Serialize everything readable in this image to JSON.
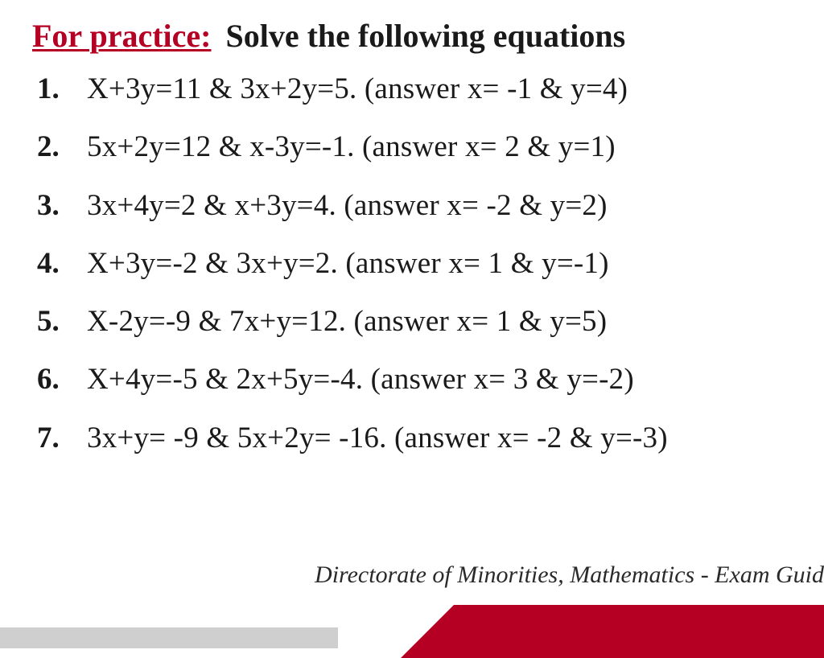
{
  "heading": {
    "prefix": "For practice:",
    "rest": "Solve the following equations"
  },
  "problems": [
    {
      "num": "1.",
      "text": "X+3y=11 & 3x+2y=5. (answer x= -1 &  y=4)"
    },
    {
      "num": "2.",
      "text": "5x+2y=12 & x-3y=-1. (answer x= 2 &  y=1)"
    },
    {
      "num": "3.",
      "text": "3x+4y=2 & x+3y=4. (answer x= -2 &  y=2)"
    },
    {
      "num": "4.",
      "text": "X+3y=-2 & 3x+y=2. (answer x= 1 &  y=-1)"
    },
    {
      "num": "5.",
      "text": "X-2y=-9 & 7x+y=12. (answer x= 1 &  y=5)"
    },
    {
      "num": "6.",
      "text": "X+4y=-5 & 2x+5y=-4. (answer x= 3 &  y=-2)"
    },
    {
      "num": "7.",
      "text": "3x+y= -9 & 5x+2y= -16. (answer x= -2 &  y=-3)"
    }
  ],
  "footer": "Directorate of Minorities, Mathematics - Exam Guid",
  "colors": {
    "accent_red": "#b50024",
    "text": "#1a1a1a",
    "grey_bar": "#cfcfcf",
    "background": "#ffffff"
  }
}
